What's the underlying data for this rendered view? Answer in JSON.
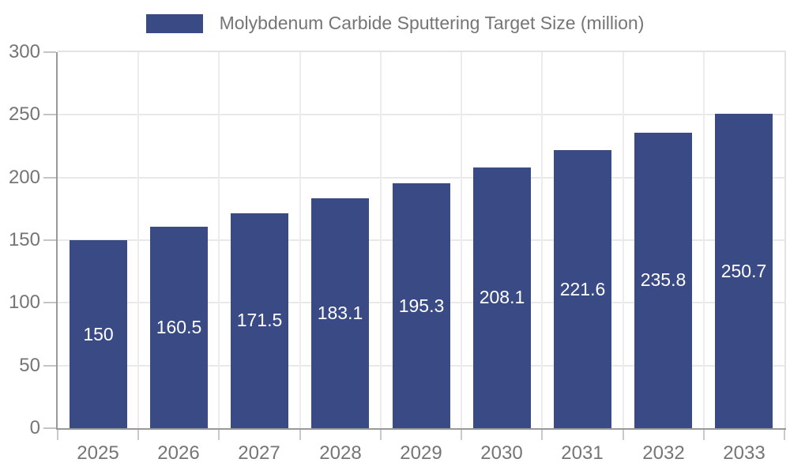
{
  "legend": {
    "label": "Molybdenum Carbide Sputtering Target Size (million)"
  },
  "chart_data": {
    "type": "bar",
    "title": "Molybdenum Carbide Sputtering Target Size (million)",
    "categories": [
      "2025",
      "2026",
      "2027",
      "2028",
      "2029",
      "2030",
      "2031",
      "2032",
      "2033"
    ],
    "values": [
      150,
      160.5,
      171.5,
      183.1,
      195.3,
      208.1,
      221.6,
      235.8,
      250.7
    ],
    "value_labels": [
      "150",
      "160.5",
      "171.5",
      "183.1",
      "195.3",
      "208.1",
      "221.6",
      "235.8",
      "250.7"
    ],
    "xlabel": "",
    "ylabel": "",
    "ylim": [
      0,
      300
    ],
    "yticks": [
      0,
      50,
      100,
      150,
      200,
      250,
      300
    ],
    "grid": true,
    "legend_position": "top",
    "colors": {
      "bar": "#3A4A85",
      "bar_value_text": "#ffffff",
      "axis_line": "#999999",
      "tick_text": "#757575",
      "legend_text": "#757575",
      "gridline": "#e9e9e9"
    }
  }
}
